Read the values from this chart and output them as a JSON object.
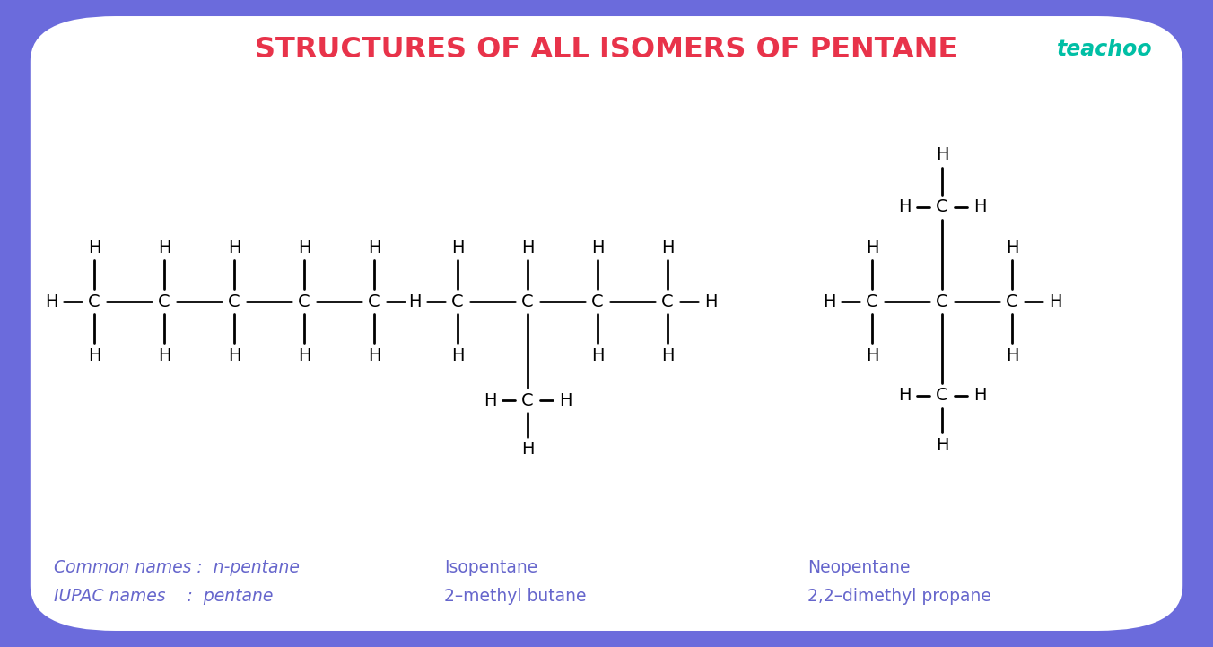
{
  "title": "STRUCTURES OF ALL ISOMERS OF PENTANE",
  "title_color": "#e8334a",
  "bg_color": "#ffffff",
  "border_color": "#6b6bdc",
  "teachoo_color": "#00bfa5",
  "atom_color": "#000000",
  "label_color": "#6666cc",
  "label1_line1": "Common names :  n-pentane",
  "label1_line2": "IUPAC names    :  pentane",
  "label2_line1": "Isopentane",
  "label2_line2": "2–methyl butane",
  "label3_line1": "Neopentane",
  "label3_line2": "2,2–dimethyl propane",
  "teachoo_text": "teachoo"
}
